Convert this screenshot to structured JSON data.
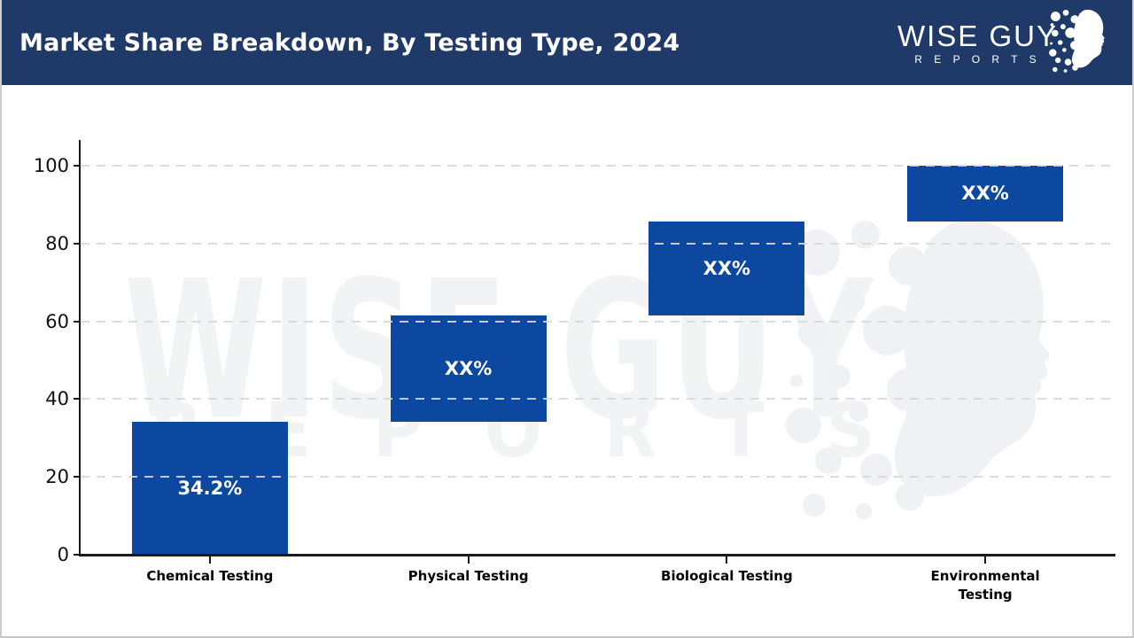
{
  "header": {
    "title": "Market Share Breakdown, By Testing Type, 2024",
    "logo": {
      "line1": "WISE GUY",
      "line2": "R E P O R T S"
    }
  },
  "watermark": {
    "line1": "WISE GUY",
    "line2": "R E P O R T S"
  },
  "chart_data": {
    "type": "bar",
    "subtype": "waterfall",
    "title": "Market Share Breakdown, By Testing Type, 2024",
    "categories": [
      "Chemical Testing",
      "Physical Testing",
      "Biological Testing",
      "Environmental Testing"
    ],
    "bars": [
      {
        "category": "Chemical Testing",
        "base": 0,
        "top": 34.2,
        "label": "34.2%"
      },
      {
        "category": "Physical Testing",
        "base": 34.2,
        "top": 61.5,
        "label": "XX%"
      },
      {
        "category": "Biological Testing",
        "base": 61.5,
        "top": 85.7,
        "label": "XX%"
      },
      {
        "category": "Environmental Testing",
        "base": 85.7,
        "top": 100,
        "label": "XX%"
      }
    ],
    "xlabel": "",
    "ylabel": "",
    "ylim": [
      0,
      100
    ],
    "yticks": [
      0,
      20,
      40,
      60,
      80,
      100
    ],
    "grid": "horizontal-dashed",
    "legend": "none",
    "bar_color": "#0c47a0",
    "bar_label_color": "#ffffff"
  },
  "colors": {
    "header_bg": "#1f3a68",
    "bar": "#0c47a0",
    "axis": "#1a1a1a",
    "grid": "#d9d9d9",
    "watermark": "#f2f3f5"
  }
}
